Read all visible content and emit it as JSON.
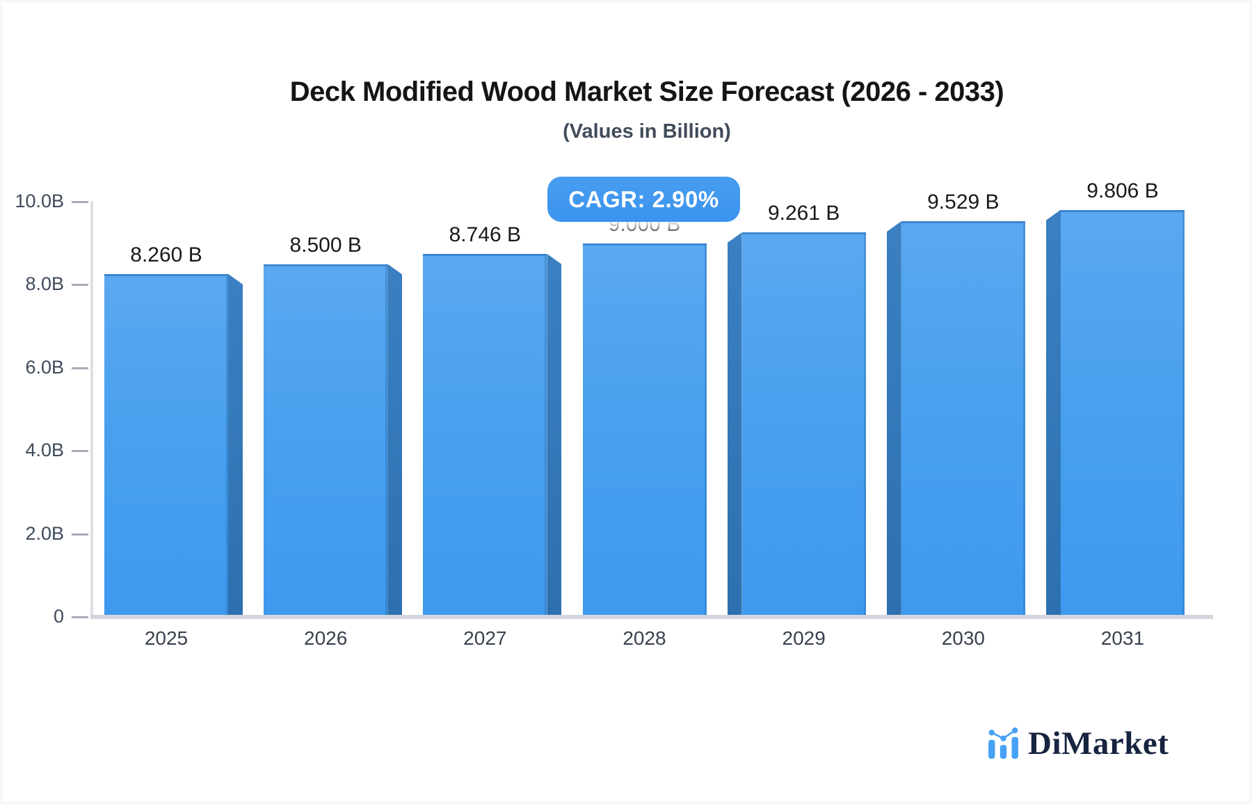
{
  "chart_data": {
    "type": "bar",
    "title": "Deck Modified Wood Market Size Forecast (2026 - 2033)",
    "subtitle": "(Values in Billion)",
    "cagr_badge": "CAGR: 2.90%",
    "categories": [
      "2025",
      "2026",
      "2027",
      "2028",
      "2029",
      "2030",
      "2031"
    ],
    "values": [
      8.26,
      8.5,
      8.746,
      9.0,
      9.261,
      9.529,
      9.806
    ],
    "bar_labels": [
      "8.260 B",
      "8.500 B",
      "8.746 B",
      "9.000 B",
      "9.261 B",
      "9.529 B",
      "9.806 B"
    ],
    "xlabel": "",
    "ylabel": "",
    "ylim": [
      0,
      10
    ],
    "grid": "off",
    "legend": "none",
    "y_ticks": [
      {
        "value": 10,
        "label": "10.0B"
      },
      {
        "value": 8,
        "label": "8.0B"
      },
      {
        "value": 6,
        "label": "6.0B"
      },
      {
        "value": 4,
        "label": "4.0B"
      },
      {
        "value": 2,
        "label": "2.0B"
      },
      {
        "value": 0,
        "label": "0"
      }
    ],
    "colors": {
      "bar_face_top": "#5aa8f0",
      "bar_face_bottom": "#3e99ef",
      "bar_side": "#2d70af",
      "badge_bg": "#3e96ef",
      "badge_text": "#ffffff",
      "title_text": "#151515",
      "subtitle_text": "#414b5a",
      "axis_text": "#3e4a5b",
      "axis_line": "#d2d6dc"
    }
  },
  "logo": {
    "text": "DiMarket",
    "icon": "bar-chart-logo-icon",
    "text_color": "#16243f",
    "icon_color": "#47a1f6"
  }
}
